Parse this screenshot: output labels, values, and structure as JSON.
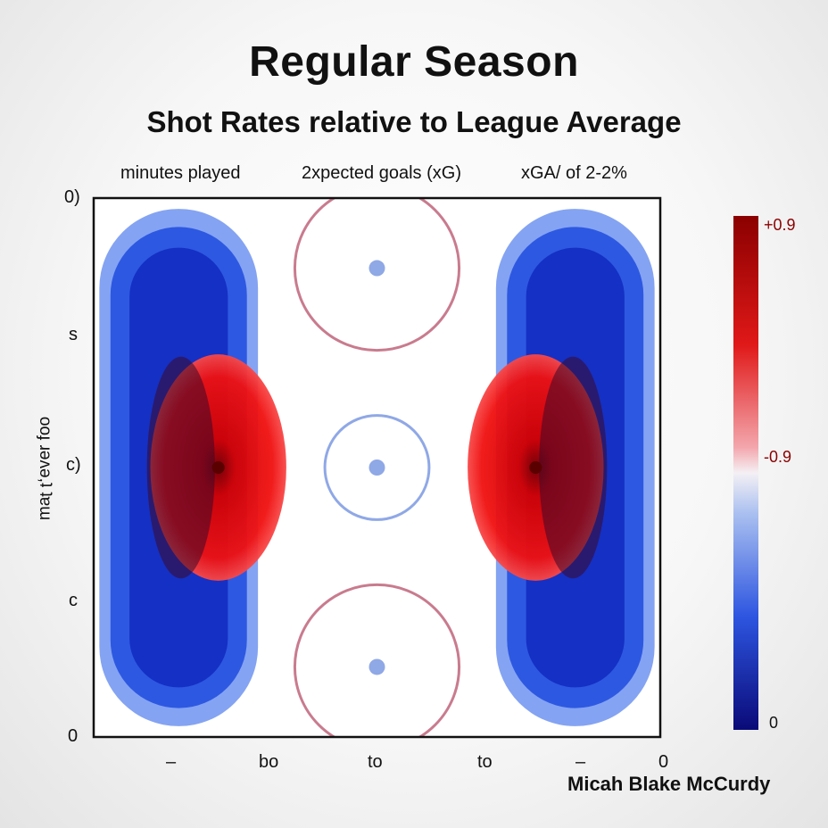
{
  "chart_data": {
    "type": "heatmap",
    "title": "Regular Season",
    "subtitle": "Shot Rates relative to League Average",
    "header_labels": [
      "minutes played",
      "2xpected goals (xG)",
      "xGA/ of 2-2%"
    ],
    "ylabel": "ooɟ ɹǝʌǝ,ʇ ʇɐɯ",
    "y_tick_labels": [
      "0)",
      "s",
      "c)",
      "c",
      "0"
    ],
    "x_tick_labels": [
      "–",
      "bo",
      "to",
      "to",
      "–",
      "0"
    ],
    "colorbar": {
      "labels": [
        "+0.9",
        "-0.9",
        "0"
      ],
      "low_color": "#0a0a78",
      "mid_color": "#f4f0f4",
      "high_color": "#8b0000"
    },
    "regions": [
      {
        "name": "left-cold-zone",
        "kind": "blue",
        "cx": 0.15,
        "cy": 0.5,
        "rx": 0.14,
        "ry": 0.48
      },
      {
        "name": "right-cold-zone",
        "kind": "blue",
        "cx": 0.85,
        "cy": 0.5,
        "rx": 0.14,
        "ry": 0.48
      },
      {
        "name": "left-hot-zone",
        "kind": "red",
        "cx": 0.22,
        "cy": 0.5,
        "rx": 0.12,
        "ry": 0.21
      },
      {
        "name": "right-hot-zone",
        "kind": "red",
        "cx": 0.78,
        "cy": 0.5,
        "rx": 0.12,
        "ry": 0.21
      }
    ],
    "circles": [
      {
        "name": "top-faceoff-circle",
        "color": "#c97b8e",
        "cx": 0.5,
        "cy": 0.13,
        "r": 0.145
      },
      {
        "name": "center-circle",
        "color": "#8fa8e6",
        "cx": 0.5,
        "cy": 0.5,
        "r": 0.092
      },
      {
        "name": "bottom-faceoff-circle",
        "color": "#c97b8e",
        "cx": 0.5,
        "cy": 0.87,
        "r": 0.145
      }
    ],
    "colors": {
      "blue": "#1f4fd8",
      "red": "#e00000",
      "dark": "#3a0a2a"
    }
  },
  "credit": "Micah Blake McCurdy"
}
